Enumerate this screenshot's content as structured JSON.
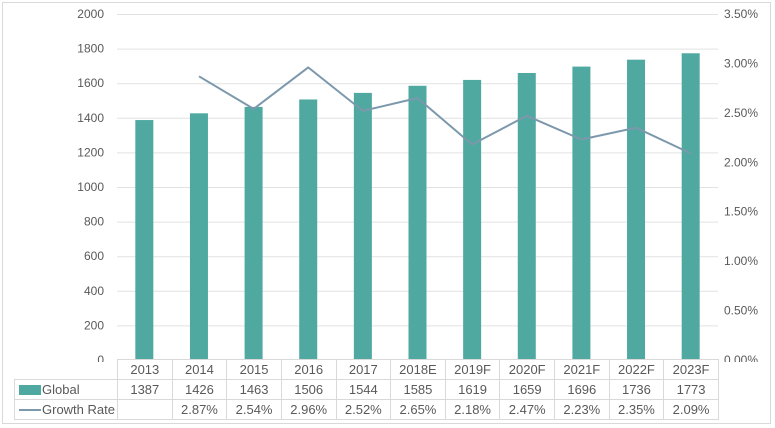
{
  "chart": {
    "bar_color": "#4FA9A1",
    "line_color": "#7C98AC",
    "grid_color": "#E2E2E2",
    "axis_text_color": "#595959",
    "table_border_color": "#D9D9D9",
    "frame_border_color": "#D9D9D9",
    "left_axis_tick_labels": [
      "0",
      "200",
      "400",
      "600",
      "800",
      "1000",
      "1200",
      "1400",
      "1600",
      "1800",
      "2000"
    ],
    "right_axis_tick_labels": [
      "0.00%",
      "0.50%",
      "1.00%",
      "1.50%",
      "2.00%",
      "2.50%",
      "3.00%",
      "3.50%"
    ]
  },
  "chart_data": {
    "type": "bar",
    "subtype": "bar+line combo",
    "title": "",
    "xlabel": "",
    "ylabel": "",
    "grid": true,
    "legend_position": "table-left",
    "categories": [
      "2013",
      "2014",
      "2015",
      "2016",
      "2017",
      "2018E",
      "2019F",
      "2020F",
      "2021F",
      "2022F",
      "2023F"
    ],
    "series": [
      {
        "name": "Global",
        "type": "bar",
        "axis": "left",
        "values": [
          1387,
          1426,
          1463,
          1506,
          1544,
          1585,
          1619,
          1659,
          1696,
          1736,
          1773
        ]
      },
      {
        "name": "Growth Rate",
        "type": "line",
        "axis": "right",
        "values": [
          null,
          2.87,
          2.54,
          2.96,
          2.52,
          2.65,
          2.18,
          2.47,
          2.23,
          2.35,
          2.09
        ]
      }
    ],
    "left_axis": {
      "min": 0,
      "max": 2000,
      "step": 200
    },
    "right_axis": {
      "min": 0,
      "max": 3.5,
      "step": 0.5,
      "format": "percent"
    }
  },
  "table": {
    "rows": [
      {
        "label": "Global",
        "swatch": "bar",
        "cells": [
          "1387",
          "1426",
          "1463",
          "1506",
          "1544",
          "1585",
          "1619",
          "1659",
          "1696",
          "1736",
          "1773"
        ]
      },
      {
        "label": "Growth Rate",
        "swatch": "line",
        "cells": [
          "",
          "2.87%",
          "2.54%",
          "2.96%",
          "2.52%",
          "2.65%",
          "2.18%",
          "2.47%",
          "2.23%",
          "2.35%",
          "2.09%"
        ]
      }
    ]
  }
}
